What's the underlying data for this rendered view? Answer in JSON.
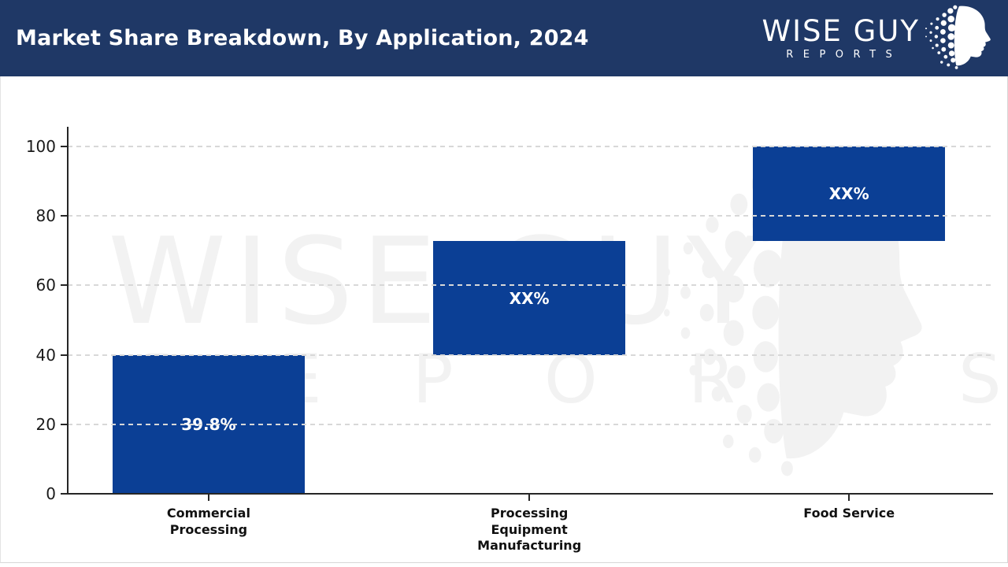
{
  "header": {
    "title": "Market Share Breakdown, By Application, 2024",
    "logo": {
      "line1": "WISE GUY",
      "line2": "REPORTS"
    }
  },
  "watermark": {
    "line1": "WISE GUY",
    "line2": "R E P O R T S"
  },
  "colors": {
    "header_bg": "#1f3866",
    "bar": "#0b3f95",
    "axis": "#262626",
    "gridline": "#d8d8d8",
    "bar_label": "#ffffff",
    "watermark": "#f2f2f2"
  },
  "chart_data": {
    "type": "bar",
    "subtype": "waterfall-segments",
    "title": "Market Share Breakdown, By Application, 2024",
    "categories": [
      "Commercial\nProcessing",
      "Processing\nEquipment\nManufacturing",
      "Food Service"
    ],
    "segments": [
      {
        "start": 0,
        "end": 39.8,
        "label": "39.8%"
      },
      {
        "start": 39.8,
        "end": 72.7,
        "label": "XX%"
      },
      {
        "start": 72.7,
        "end": 100,
        "label": "XX%"
      }
    ],
    "xlabel": "",
    "ylabel": "",
    "ylim": [
      0,
      105
    ],
    "yticks": [
      0,
      20,
      40,
      60,
      80,
      100
    ],
    "grid": "horizontal-dashed",
    "legend": "none",
    "bar_centers_pct": [
      15.2,
      49.8,
      84.3
    ],
    "bar_width_pct": 20.7
  }
}
